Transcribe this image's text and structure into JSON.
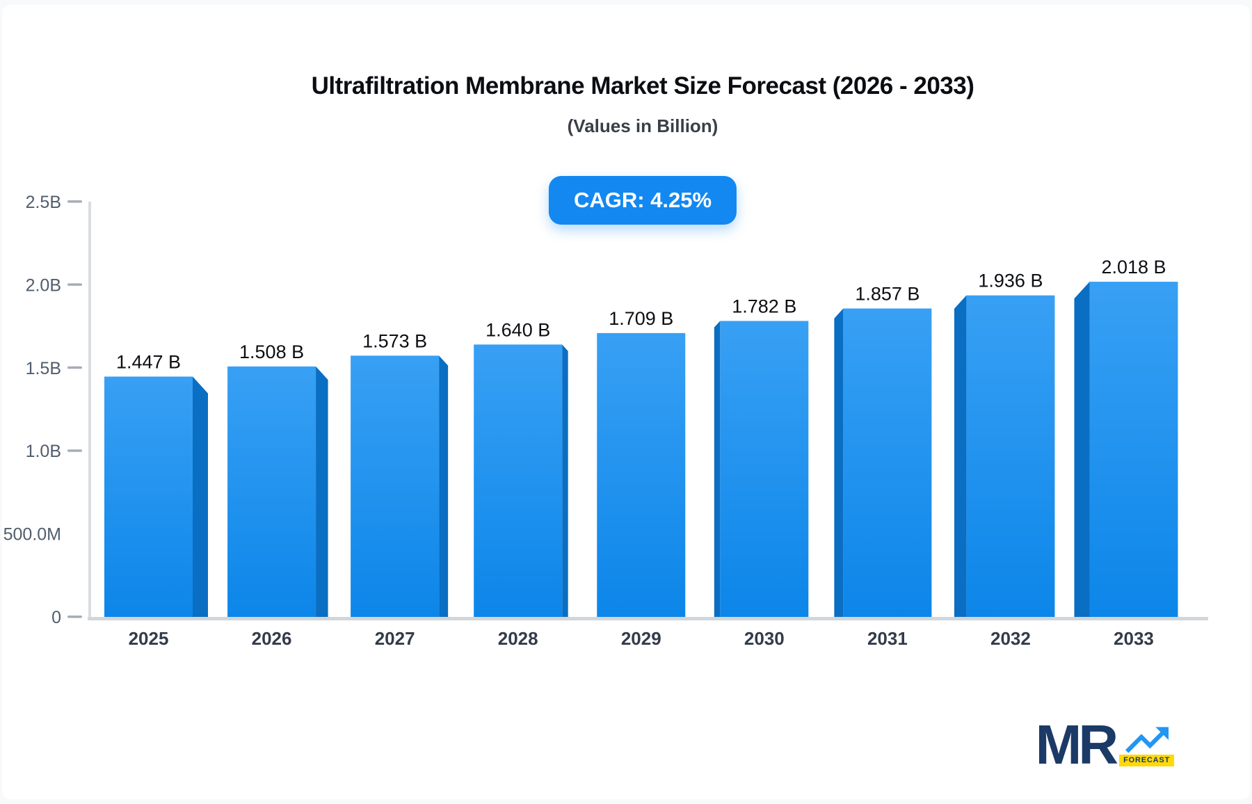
{
  "header": {
    "title": "Ultrafiltration Membrane Market Size Forecast (2026 - 2033)",
    "subtitle": "(Values in Billion)",
    "cagr_badge": "CAGR: 4.25%"
  },
  "chart_data": {
    "type": "bar",
    "title": "Ultrafiltration Membrane Market Size Forecast (2026 - 2033)",
    "subtitle": "(Values in Billion)",
    "cagr_percent": 4.25,
    "categories": [
      "2025",
      "2026",
      "2027",
      "2028",
      "2029",
      "2030",
      "2031",
      "2032",
      "2033"
    ],
    "values": [
      1.447,
      1.508,
      1.573,
      1.64,
      1.709,
      1.782,
      1.857,
      1.936,
      2.018
    ],
    "value_labels": [
      "1.447 B",
      "1.508 B",
      "1.573 B",
      "1.640 B",
      "1.709 B",
      "1.782 B",
      "1.857 B",
      "1.936 B",
      "2.018 B"
    ],
    "ylim": [
      0,
      2.5
    ],
    "yticks": [
      {
        "v": 0,
        "label": "0",
        "dash": true
      },
      {
        "v": 0.5,
        "label": "500.0M",
        "dash": false
      },
      {
        "v": 1.0,
        "label": "1.0B",
        "dash": true
      },
      {
        "v": 1.5,
        "label": "1.5B",
        "dash": true
      },
      {
        "v": 2.0,
        "label": "2.0B",
        "dash": true
      },
      {
        "v": 2.5,
        "label": "2.5B",
        "dash": true
      }
    ],
    "grid": false,
    "legend": "none",
    "bar_style": "3d-perspective-center-vanishing",
    "colors": {
      "bar_face_top": "#38a0f4",
      "bar_face_bottom": "#0c86e9",
      "bar_side": "#0a6ec2",
      "badge_bg": "#1388f0",
      "badge_text": "#ffffff",
      "axis_line": "#d9dce1",
      "baseline": "#d2d5da",
      "tick": "#a6adb8",
      "y_label": "#515d6d",
      "x_label": "#333b4a",
      "value_label": "#0c0e12"
    }
  },
  "logo": {
    "brand": "MR",
    "sub": "FORECAST",
    "colors": {
      "navy": "#1c3a66",
      "blue": "#2196f3",
      "yellow": "#ffd908"
    }
  }
}
